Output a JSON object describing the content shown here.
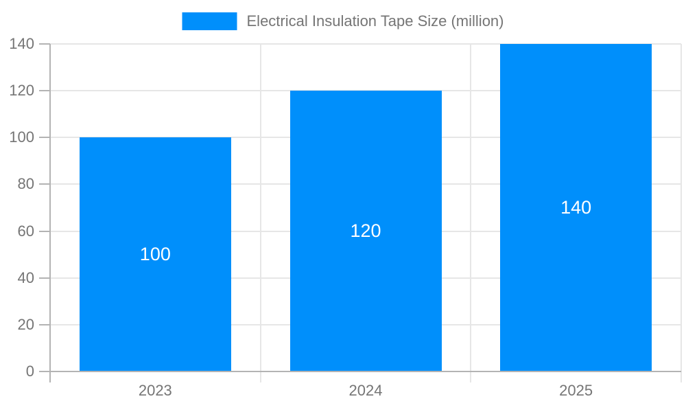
{
  "chart_data": {
    "type": "bar",
    "title": "Electrical Insulation Tape Size (million)",
    "legend": {
      "label": "Electrical Insulation Tape Size (million)",
      "position": "top",
      "marker": "rect"
    },
    "categories": [
      "2023",
      "2024",
      "2025"
    ],
    "series": [
      {
        "name": "Electrical Insulation Tape Size (million)",
        "values": [
          100,
          120,
          140
        ]
      }
    ],
    "bar_labels": [
      "100",
      "120",
      "140"
    ],
    "xlabel": "",
    "ylabel": "",
    "ylim": [
      0,
      140
    ],
    "yticks": [
      0,
      20,
      40,
      60,
      80,
      100,
      120,
      140
    ],
    "grid": true,
    "colors": {
      "bar": "#008FFB",
      "grid": "#e6e6e6",
      "axis": "#b3b3b3",
      "text": "#757575",
      "value_label": "#ffffff",
      "background": "#ffffff"
    }
  }
}
